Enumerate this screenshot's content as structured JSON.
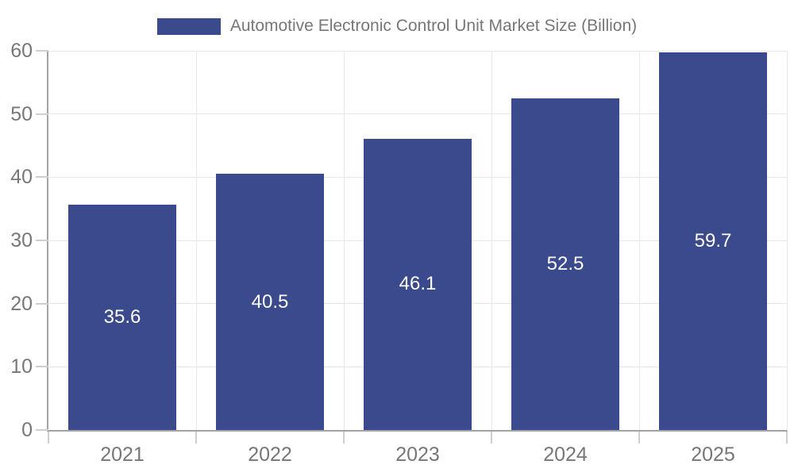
{
  "chart_data": {
    "type": "bar",
    "title": "Automotive Electronic Control Unit Market Size (Billion)",
    "categories": [
      "2021",
      "2022",
      "2023",
      "2024",
      "2025"
    ],
    "values": [
      35.6,
      40.5,
      46.1,
      52.5,
      59.7
    ],
    "value_labels": [
      "35.6",
      "40.5",
      "46.1",
      "52.5",
      "59.7"
    ],
    "xlabel": "",
    "ylabel": "",
    "ylim": [
      0,
      60
    ],
    "yticks": [
      0,
      10,
      20,
      30,
      40,
      50,
      60
    ],
    "grid": true,
    "legend_position": "top-center",
    "legend_entries": [
      "Automotive Electronic Control Unit Market Size (Billion)"
    ],
    "colors": {
      "bar": "#3a4a8c",
      "tick_text": "#777777",
      "legend_text": "#777777",
      "gridline": "#e7e7e7",
      "tick_mark": "#cfcfcf",
      "axis_line": "#a3a3a3",
      "value_label": "#ffffff",
      "background": "#ffffff"
    }
  }
}
